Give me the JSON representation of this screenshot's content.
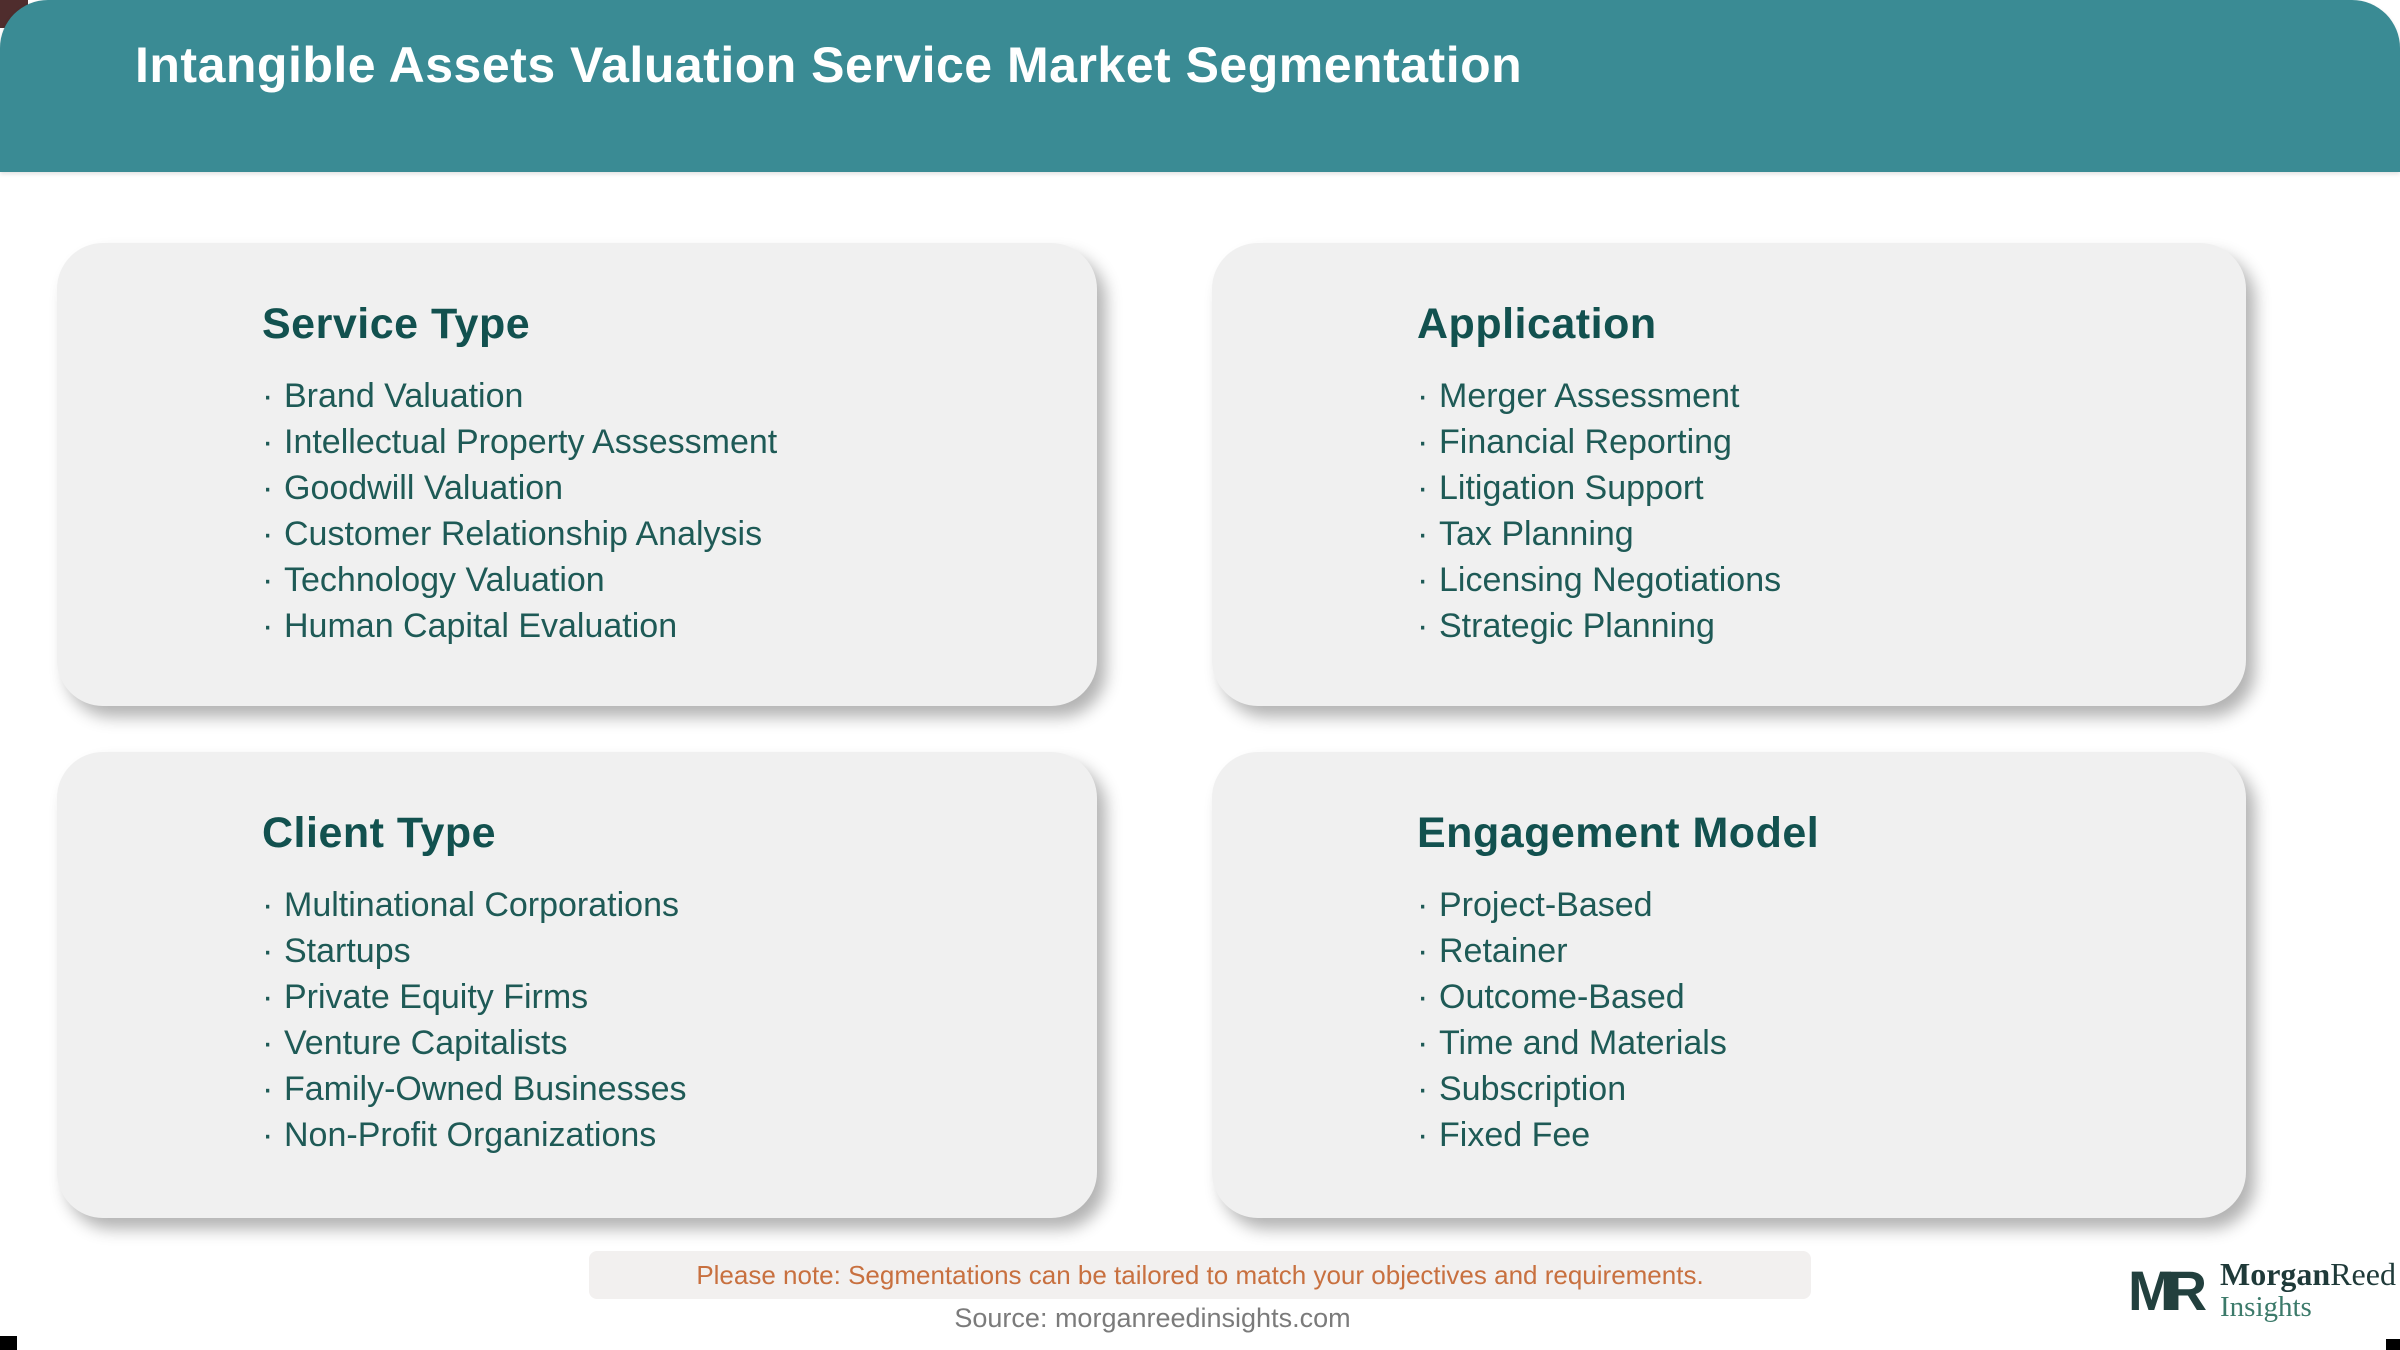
{
  "header": {
    "title": "Intangible Assets Valuation Service Market Segmentation"
  },
  "cards": [
    {
      "title": "Service Type",
      "items": [
        "Brand Valuation",
        "Intellectual Property Assessment",
        "Goodwill Valuation",
        "Customer Relationship Analysis",
        "Technology Valuation",
        "Human Capital Evaluation"
      ]
    },
    {
      "title": "Application",
      "items": [
        "Merger Assessment",
        "Financial Reporting",
        "Litigation Support",
        "Tax Planning",
        "Licensing Negotiations",
        "Strategic Planning"
      ]
    },
    {
      "title": "Client Type",
      "items": [
        "Multinational Corporations",
        "Startups",
        "Private Equity Firms",
        "Venture Capitalists",
        "Family-Owned Businesses",
        "Non-Profit Organizations"
      ]
    },
    {
      "title": "Engagement Model",
      "items": [
        "Project-Based",
        "Retainer",
        "Outcome-Based",
        "Time and Materials",
        "Subscription",
        "Fixed Fee"
      ]
    }
  ],
  "bullet": {
    "char": "·"
  },
  "note": {
    "text": "Please note: Segmentations can be tailored to match your objectives and requirements."
  },
  "source": {
    "text": "Source: morganreedinsights.com"
  },
  "logo": {
    "monogram": "MR",
    "name_bold": "Morgan",
    "name_regular": "Reed",
    "tagline": "Insights"
  },
  "colors": {
    "header_bg": "#3A8B94",
    "card_bg": "#F0F0F0",
    "heading_text": "#12514F",
    "list_text": "#1E5A56",
    "note_text": "#C8703F",
    "note_bg": "#F2F0EF",
    "source_text": "#7B7B7B",
    "logo_dark": "#22403E",
    "logo_green": "#3C7A6A"
  }
}
